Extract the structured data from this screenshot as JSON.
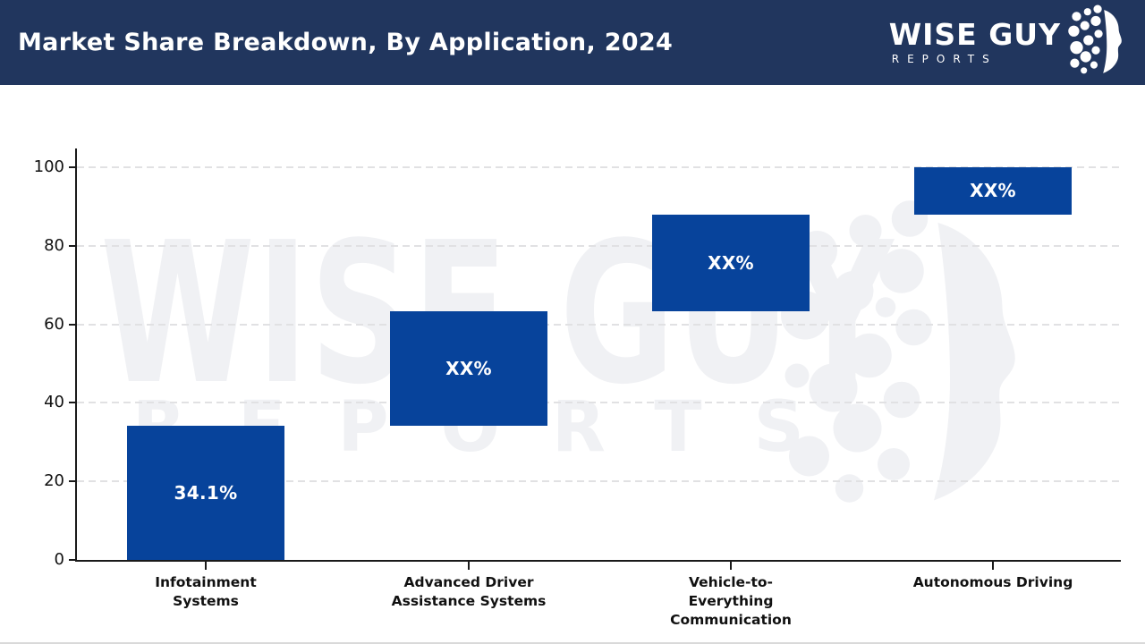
{
  "header": {
    "title": "Market Share Breakdown, By Application, 2024",
    "bg_color": "#21365e",
    "logo": {
      "line1": "WISE GUY",
      "line2": "REPORTS"
    }
  },
  "watermark": {
    "line1": "WISE GUY",
    "line2": "REPORTS",
    "color": "#f0f1f4"
  },
  "chart_data": {
    "type": "bar",
    "subtype": "waterfall",
    "title": "Market Share Breakdown, By Application, 2024",
    "xlabel": "",
    "ylabel": "",
    "ylim": [
      0,
      104
    ],
    "yticks": [
      0,
      20,
      40,
      60,
      80,
      100
    ],
    "grid": {
      "axis": "y",
      "style": "dashed",
      "color": "#e1e1e3"
    },
    "legend": "none",
    "bar_color": "#07439b",
    "bar_label_color": "#ffffff",
    "segments": [
      {
        "category": "Infotainment\nSystems",
        "start": 0,
        "end": 34.1,
        "label": "34.1%"
      },
      {
        "category": "Advanced Driver\nAssistance Systems",
        "start": 34.1,
        "end": 63.4,
        "label": "XX%"
      },
      {
        "category": "Vehicle-to-\nEverything\nCommunication",
        "start": 63.4,
        "end": 88.0,
        "label": "XX%"
      },
      {
        "category": "Autonomous Driving",
        "start": 88.0,
        "end": 100.0,
        "label": "XX%"
      }
    ]
  }
}
